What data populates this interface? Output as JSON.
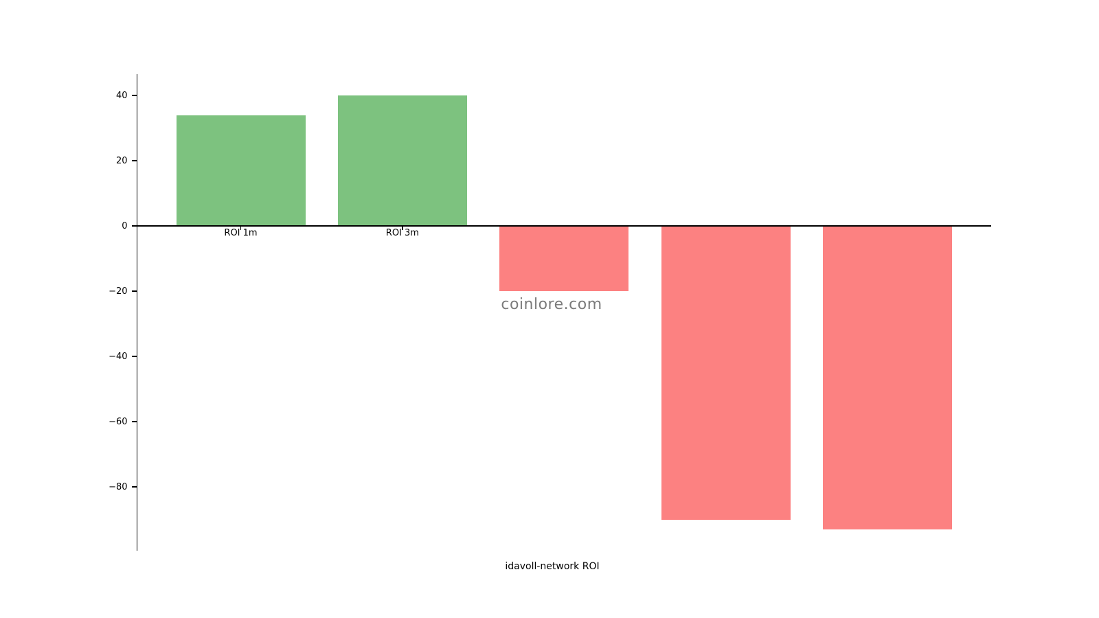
{
  "chart_data": {
    "type": "bar",
    "title": "idavoll-network ROI",
    "watermark": "coinlore.com",
    "categories": [
      "ROI 1m",
      "ROI 3m",
      "",
      "",
      ""
    ],
    "values": [
      34,
      40,
      -20,
      -90,
      -93
    ],
    "colors": [
      "#7dc27f",
      "#7dc27f",
      "#fc8181",
      "#fc8181",
      "#fc8181"
    ],
    "positive_color": "#7dc27f",
    "negative_color": "#fc8181",
    "yticks": [
      40,
      20,
      0,
      -20,
      -40,
      -60,
      -80
    ],
    "ylim": [
      -99.5,
      46.5
    ],
    "xlabel": "",
    "ylabel": "",
    "grid": false,
    "legend_position": "none",
    "axis_color": "#000000",
    "watermark_color": "#7b7b7b",
    "background_color": "#ffffff"
  }
}
